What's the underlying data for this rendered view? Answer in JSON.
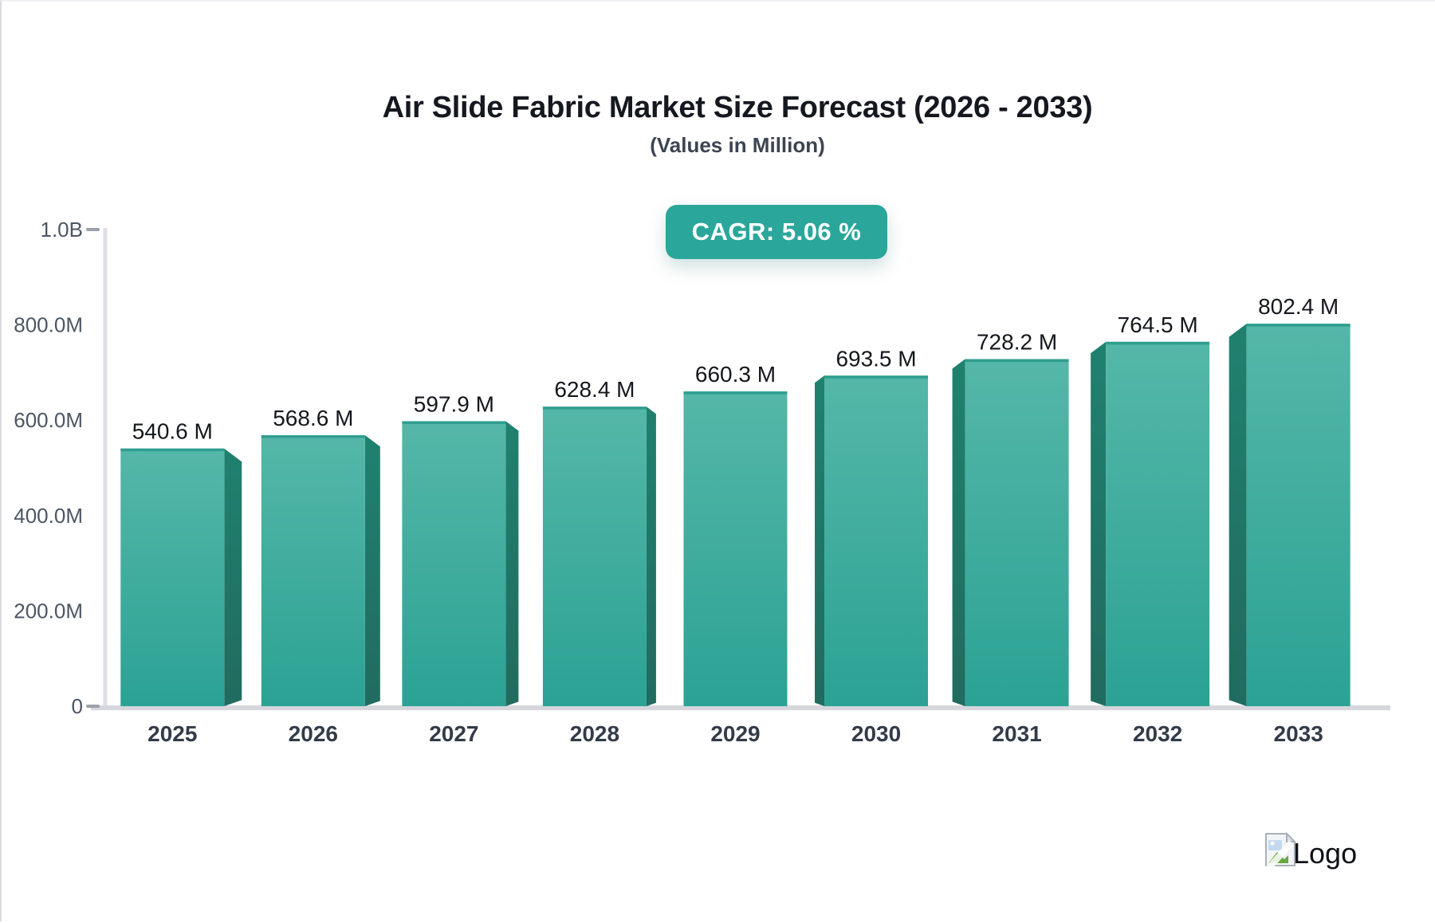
{
  "header": {
    "cagr_label": "CAGR: 5.06 %"
  },
  "footer": {
    "logo_text": "Logo"
  },
  "colors": {
    "accent": "#2aa79a",
    "bar_face_top": "#55b7a8",
    "bar_face_bottom": "#2ba294",
    "bar_top_edge": "#2f9e8f",
    "bar_side_top": "#20816f",
    "bar_side_bottom": "#216b5f",
    "axis_line": "#d6d7dc",
    "y_axis_line": "#dcdee3",
    "tick_dash": "#9ba1ac",
    "y_label": "#4d5665",
    "x_label": "#333b49",
    "value_label": "#14171c",
    "badge_text": "#ffffff"
  },
  "chart_data": {
    "type": "bar",
    "title": "Air Slide Fabric Market Size Forecast (2026 - 2033)",
    "subtitle": "(Values in Million)",
    "unit": "Million",
    "cagr": "5.06 %",
    "categories": [
      "2025",
      "2026",
      "2027",
      "2028",
      "2029",
      "2030",
      "2031",
      "2032",
      "2033"
    ],
    "values": [
      540.6,
      568.6,
      597.9,
      628.4,
      660.3,
      693.5,
      728.2,
      764.5,
      802.4
    ],
    "value_labels": [
      "540.6 M",
      "568.6 M",
      "597.9 M",
      "628.4 M",
      "660.3 M",
      "693.5 M",
      "728.2 M",
      "764.5 M",
      "802.4 M"
    ],
    "series": [
      {
        "name": "Market Size",
        "values": [
          540.6,
          568.6,
          597.9,
          628.4,
          660.3,
          693.5,
          728.2,
          764.5,
          802.4
        ]
      }
    ],
    "xlabel": "",
    "ylabel": "",
    "ylim": [
      0,
      1000
    ],
    "y_ticks": [
      {
        "label": "0",
        "value": 0,
        "dash": true
      },
      {
        "label": "200.0M",
        "value": 200,
        "dash": false
      },
      {
        "label": "400.0M",
        "value": 400,
        "dash": false
      },
      {
        "label": "600.0M",
        "value": 600,
        "dash": false
      },
      {
        "label": "800.0M",
        "value": 800,
        "dash": false
      },
      {
        "label": "1.0B",
        "value": 1000,
        "dash": true
      }
    ],
    "grid": false,
    "legend": "none",
    "style_3d": true
  }
}
